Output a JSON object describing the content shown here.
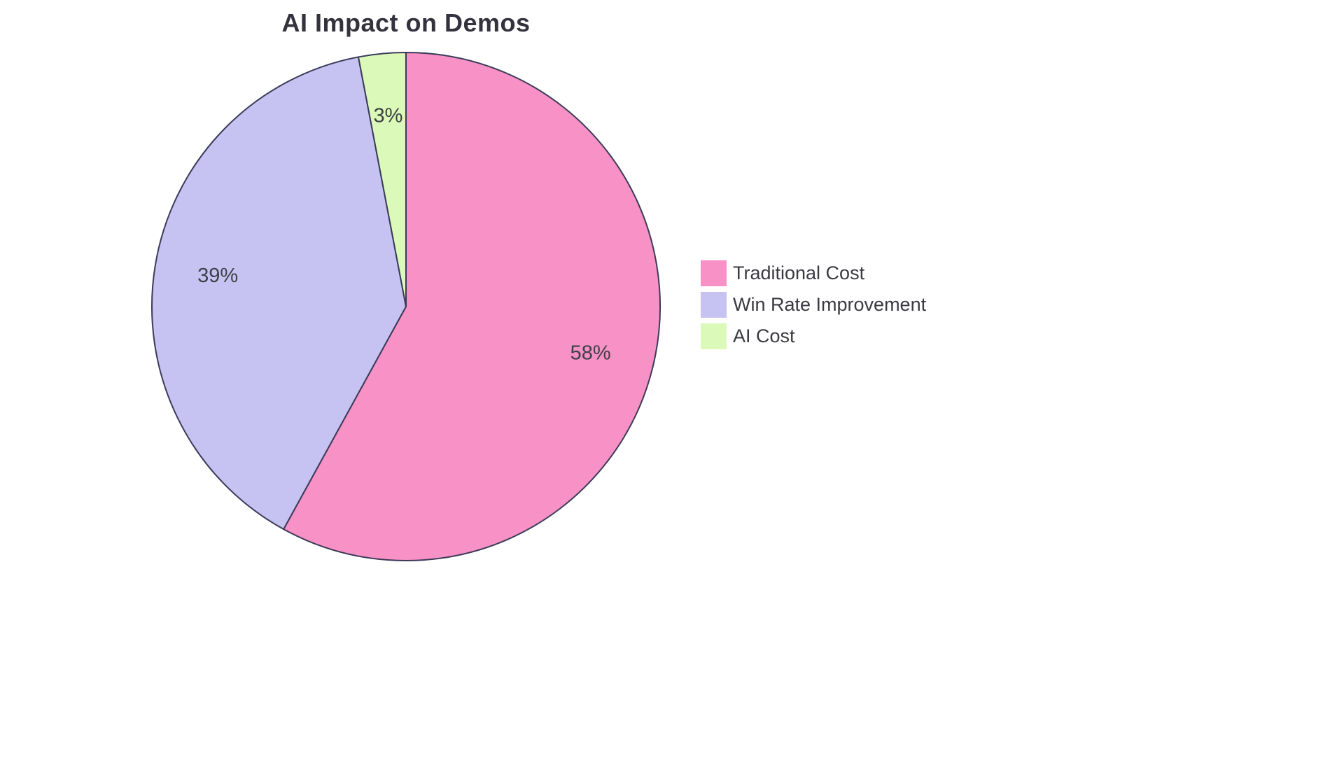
{
  "chart_data": {
    "type": "pie",
    "title": "AI Impact on Demos",
    "labels": [
      "Traditional Cost",
      "Win Rate Improvement",
      "AI Cost"
    ],
    "values": [
      58,
      39,
      3
    ],
    "slice_labels": [
      "58%",
      "39%",
      "3%"
    ],
    "colors": [
      "#F791C6",
      "#C6C3F2",
      "#DBF9B8"
    ],
    "stroke_color": "#3B3B58",
    "label_text_color": "#3F3F46",
    "legend_position": "right",
    "start_angle_deg": 0,
    "direction": "clockwise"
  }
}
